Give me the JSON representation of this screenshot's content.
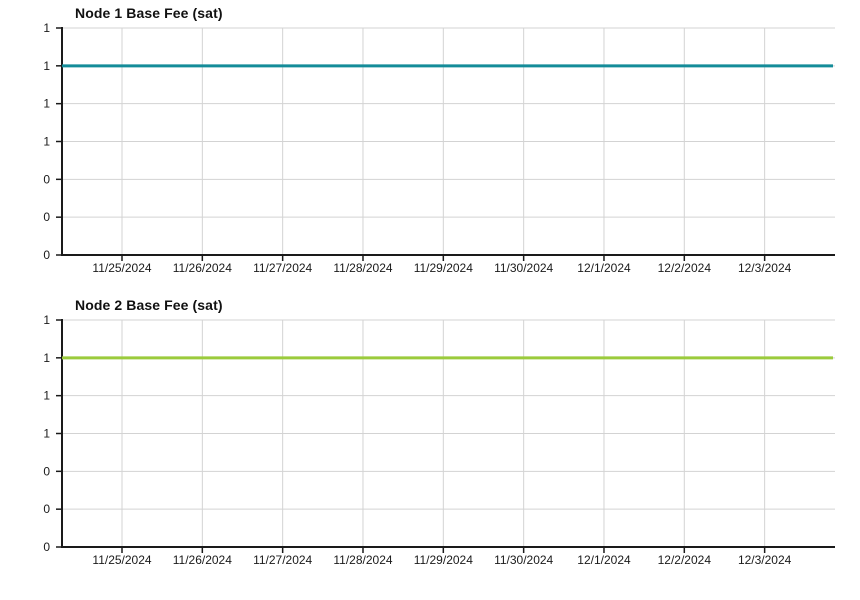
{
  "page": {
    "background": "#ffffff"
  },
  "colors": {
    "axis": "#1a1a1a",
    "grid": "#d3d3d3",
    "tick_text": "#1a1a1a",
    "title_text": "#111111"
  },
  "chart_data": [
    {
      "type": "line",
      "title": "Node 1 Base Fee (sat)",
      "xlabel": "",
      "ylabel": "",
      "categories": [
        "11/25/2024",
        "11/26/2024",
        "11/27/2024",
        "11/28/2024",
        "11/29/2024",
        "11/30/2024",
        "12/1/2024",
        "12/2/2024",
        "12/3/2024"
      ],
      "series": [
        {
          "name": "Node 1 Base Fee",
          "values": [
            1,
            1,
            1,
            1,
            1,
            1,
            1,
            1,
            1
          ],
          "constant_value": 1,
          "color": "#148c99"
        }
      ],
      "ylim": [
        0,
        1.2
      ],
      "ytick_values": [
        1.2,
        1.0,
        0.8,
        0.6,
        0.4,
        0.2,
        0
      ],
      "ytick_labels": [
        "1",
        "1",
        "1",
        "1",
        "0",
        "0",
        "0"
      ],
      "grid": true,
      "legend_position": "none",
      "line_spans_full_width": true
    },
    {
      "type": "line",
      "title": "Node 2 Base Fee (sat)",
      "xlabel": "",
      "ylabel": "",
      "categories": [
        "11/25/2024",
        "11/26/2024",
        "11/27/2024",
        "11/28/2024",
        "11/29/2024",
        "11/30/2024",
        "12/1/2024",
        "12/2/2024",
        "12/3/2024"
      ],
      "series": [
        {
          "name": "Node 2 Base Fee",
          "values": [
            1,
            1,
            1,
            1,
            1,
            1,
            1,
            1,
            1
          ],
          "constant_value": 1,
          "color": "#9bcb3c"
        }
      ],
      "ylim": [
        0,
        1.2
      ],
      "ytick_values": [
        1.2,
        1.0,
        0.8,
        0.6,
        0.4,
        0.2,
        0
      ],
      "ytick_labels": [
        "1",
        "1",
        "1",
        "1",
        "0",
        "0",
        "0"
      ],
      "grid": true,
      "legend_position": "none",
      "line_spans_full_width": true
    }
  ]
}
